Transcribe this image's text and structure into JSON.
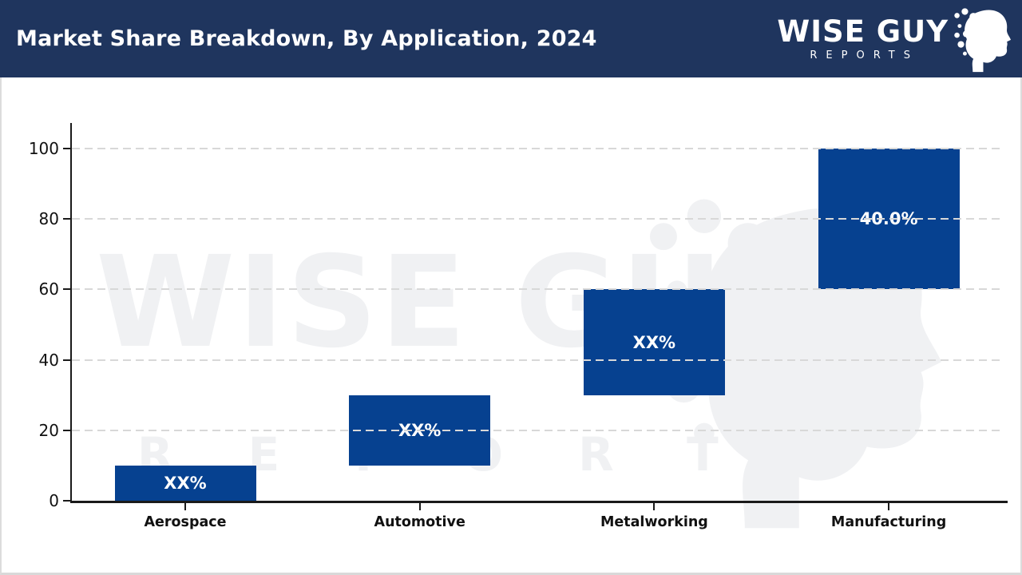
{
  "header": {
    "title": "Market Share Breakdown, By Application, 2024",
    "logo": {
      "brand": "WISE GUY",
      "sub": "REPORTS",
      "face_icon": "dotted-head-profile"
    }
  },
  "watermark": {
    "line1": "WISE GUY",
    "line2": "REPORTS",
    "face_icon": "dotted-head-profile"
  },
  "chart_data": {
    "type": "bar",
    "variant": "waterfall-floating-bars",
    "title": "Market Share Breakdown, By Application, 2024",
    "categories": [
      "Aerospace",
      "Automotive",
      "Metalworking",
      "Manufacturing"
    ],
    "series": [
      {
        "name": "Market Share",
        "starts": [
          0,
          10,
          30,
          60
        ],
        "ends": [
          10,
          30,
          60,
          100
        ]
      }
    ],
    "bar_labels": [
      "XX%",
      "XX%",
      "XX%",
      "40.0%"
    ],
    "xlabel": "",
    "ylabel": "",
    "ylim": [
      0,
      106
    ],
    "yticks": [
      0,
      20,
      40,
      60,
      80,
      100
    ],
    "grid": {
      "horizontal": true,
      "style": "dashed",
      "drawn_over_bars": true
    },
    "legend": "none",
    "colors": {
      "bar": "#064190",
      "bar_label": "#ffffff",
      "header_bg": "#1f355e",
      "gridline": "#d8d8d8",
      "axis": "#1a1a1a",
      "watermark": "#f0f1f3",
      "page_border": "#dcdcdc"
    }
  }
}
